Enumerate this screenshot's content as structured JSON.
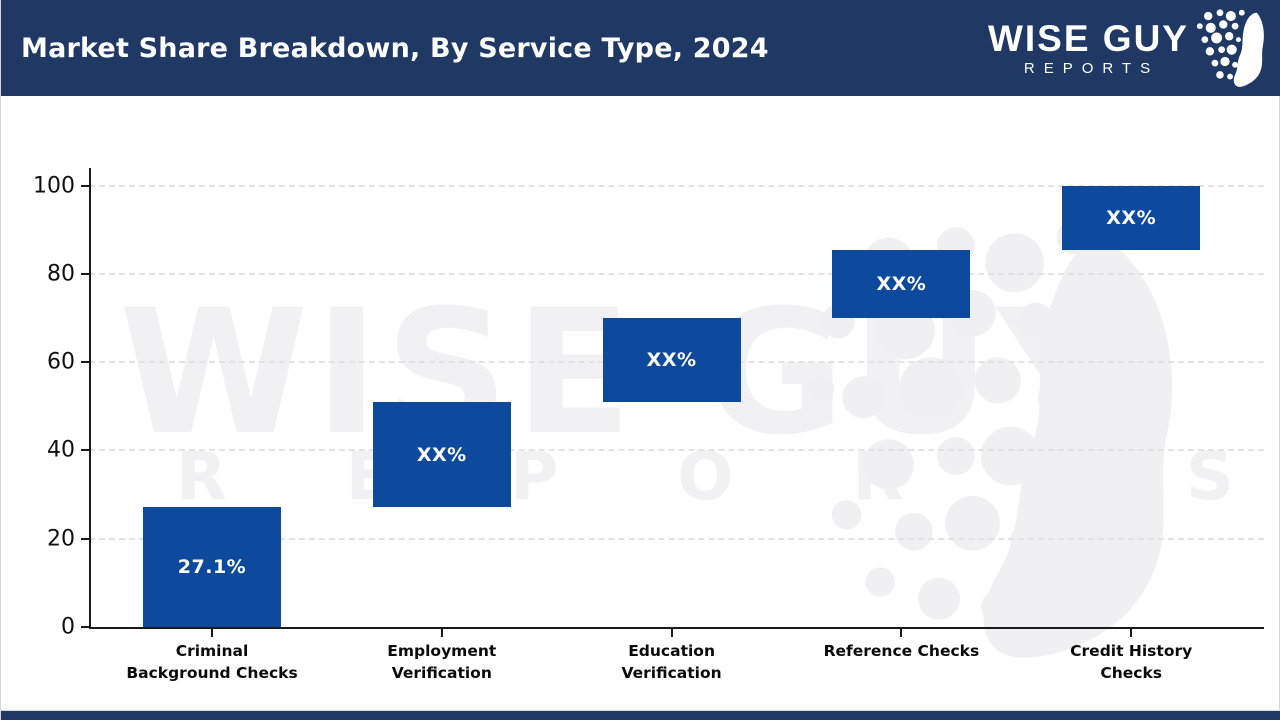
{
  "header": {
    "title": "Market Share Breakdown, By Service Type, 2024",
    "bg_color": "#1f3864",
    "logo": {
      "line1": "WISE GUY",
      "line2": "REPORTS"
    }
  },
  "watermark": {
    "line1": "WISE GUY",
    "line2": "R E P O R T S"
  },
  "chart_data": {
    "type": "bar",
    "subtype": "waterfall",
    "title": "Market Share Breakdown, By Service Type, 2024",
    "xlabel": "",
    "ylabel": "",
    "categories": [
      "Criminal\nBackground Checks",
      "Employment\nVerification",
      "Education\nVerification",
      "Reference Checks",
      "Credit History\nChecks"
    ],
    "segments": [
      {
        "category": "Criminal Background Checks",
        "start": 0,
        "end": 27.1,
        "label": "27.1%"
      },
      {
        "category": "Employment Verification",
        "start": 27.1,
        "end": 51,
        "label": "XX%"
      },
      {
        "category": "Education Verification",
        "start": 51,
        "end": 70,
        "label": "XX%"
      },
      {
        "category": "Reference Checks",
        "start": 70,
        "end": 85.5,
        "label": "XX%"
      },
      {
        "category": "Credit History Checks",
        "start": 85.5,
        "end": 100,
        "label": "XX%"
      }
    ],
    "ylim": [
      0,
      100
    ],
    "yticks": [
      0,
      20,
      40,
      60,
      80,
      100
    ],
    "grid": "horizontal-dashed",
    "legend": "none",
    "bar_color": "#0d4a9e",
    "bar_label_color": "#ffffff",
    "axis_color": "#1a1a1a"
  }
}
